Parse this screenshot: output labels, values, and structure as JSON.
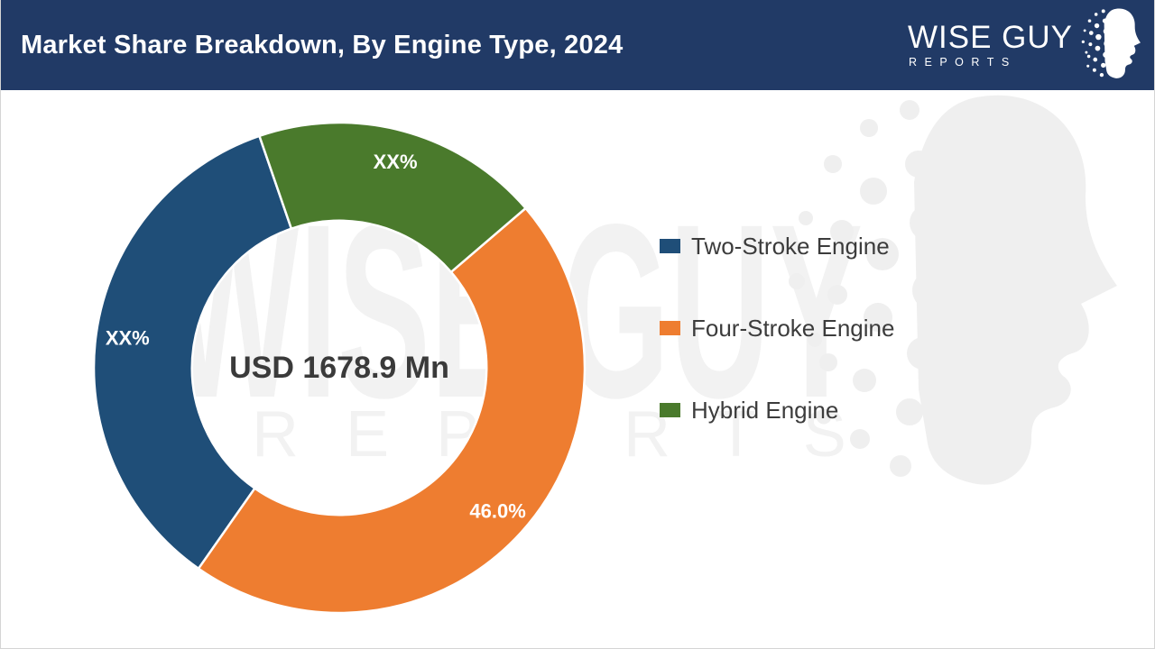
{
  "header": {
    "title": "Market Share Breakdown, By Engine Type, 2024",
    "logo": {
      "line1": "WISE GUY",
      "line2": "REPORTS"
    }
  },
  "chart_data": {
    "type": "pie",
    "subtype": "donut",
    "title": "Market Share Breakdown, By Engine Type, 2024",
    "center_label": "USD 1678.9 Mn",
    "series": [
      {
        "name": "Two-Stroke Engine",
        "value": 35.0,
        "slice_label": "XX%",
        "color": "#1f4e78"
      },
      {
        "name": "Four-Stroke Engine",
        "value": 46.0,
        "slice_label": "46.0%",
        "color": "#ee7d30"
      },
      {
        "name": "Hybrid Engine",
        "value": 19.0,
        "slice_label": "XX%",
        "color": "#4a7a2c"
      }
    ],
    "start_angle_deg": -19,
    "inner_radius_ratio": 0.6,
    "slice_label_color": "#ffffff",
    "legend_position": "right"
  },
  "watermark": {
    "line1": "WISE GUY",
    "line2": "REPORTS"
  },
  "colors": {
    "header_bg": "#213a66",
    "center_text": "#3a3a3a",
    "legend_text": "#3c3c3c",
    "watermark": "#f2f2f2",
    "frame_border": "#d5d5d5"
  }
}
